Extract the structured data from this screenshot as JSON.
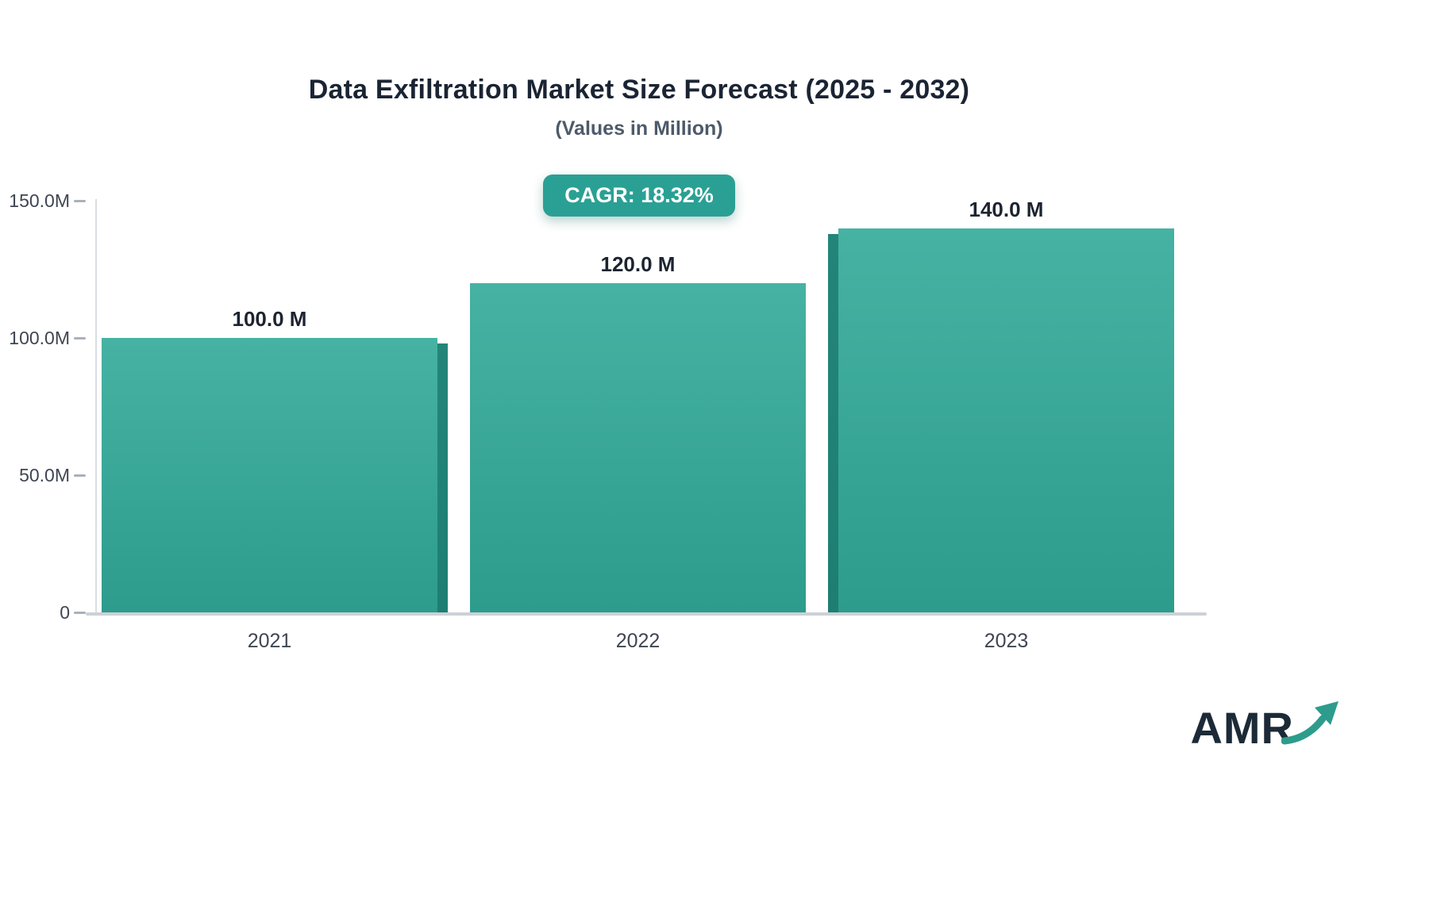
{
  "chart_data": {
    "type": "bar",
    "title": "Data Exfiltration Market Size Forecast (2025 - 2032)",
    "subtitle": "(Values in Million)",
    "cagr_badge": "CAGR: 18.32%",
    "categories": [
      "2021",
      "2022",
      "2023"
    ],
    "values": [
      100.0,
      120.0,
      140.0
    ],
    "value_labels": [
      "100.0 M",
      "120.0 M",
      "140.0 M"
    ],
    "xlabel": "",
    "ylabel": "",
    "ylim": [
      0,
      150
    ],
    "yticks": [
      {
        "value": 150,
        "label": "150.0M"
      },
      {
        "value": 100,
        "label": "100.0M"
      },
      {
        "value": 50,
        "label": "50.0M"
      },
      {
        "value": 0,
        "label": "0"
      }
    ],
    "grid": "off",
    "legend": "none",
    "bar_sides": [
      "right",
      "none",
      "left"
    ],
    "colors": {
      "bar_top": "#46b2a3",
      "bar_bottom": "#2d9c8c",
      "bar_side": "#1e7e72",
      "badge_bg": "#2aa094",
      "title_text": "#1a2433",
      "subtitle_text": "#4d5a6a",
      "axis_text": "#3f4652",
      "logo_arrow": "#2d9c8c"
    }
  },
  "logo": {
    "text": "AMR"
  }
}
